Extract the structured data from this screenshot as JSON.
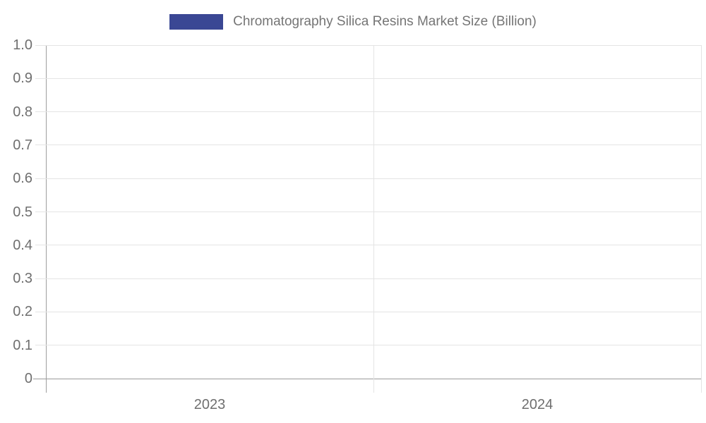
{
  "chart_data": {
    "type": "bar",
    "title": "Chromatography Silica Resins Market Size (Billion)",
    "categories": [
      "2023",
      "2024"
    ],
    "series": [
      {
        "name": "Chromatography Silica Resins Market Size (Billion)",
        "color": "#3A4794",
        "values": [
          null,
          null
        ]
      }
    ],
    "xlabel": "",
    "ylabel": "",
    "ylim": [
      0,
      1.0
    ],
    "ytick_step": 0.1,
    "yticklabels": [
      "0",
      "0.1",
      "0.2",
      "0.3",
      "0.4",
      "0.5",
      "0.6",
      "0.7",
      "0.8",
      "0.9",
      "1.0"
    ],
    "grid": true,
    "legend_position": "top-center",
    "bars_rendered": false
  },
  "legend": {
    "label": "Chromatography Silica Resins Market Size (Billion)",
    "swatch_color": "#3A4794"
  },
  "colors": {
    "background": "#FFFFFF",
    "axis_line": "#9A9A9A",
    "gridline": "#E4E4E4",
    "tick_text": "#6F6F6F",
    "legend_text": "#757575",
    "series_accent": "#3A4794"
  }
}
